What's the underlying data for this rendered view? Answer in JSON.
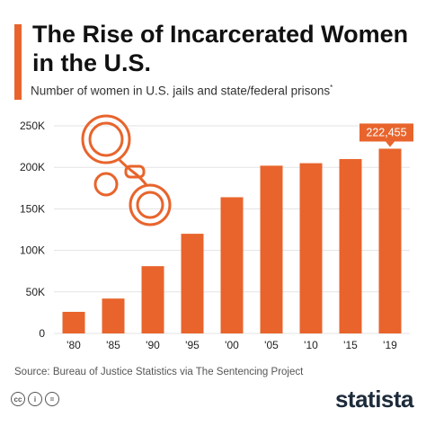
{
  "title": "The Rise of Incarcerated Women in the U.S.",
  "subtitle": "Number of women in U.S. jails and state/federal prisons",
  "subtitle_marker": "*",
  "source": "Source: Bureau of Justice Statistics via The Sentencing Project",
  "brand": "statista",
  "license_icons": [
    "cc-icon",
    "person-icon",
    "equals-icon"
  ],
  "colors": {
    "accent": "#e8642c",
    "bar": "#e8642c",
    "grid": "#e3e3e3",
    "text": "#222222"
  },
  "chart_data": {
    "type": "bar",
    "categories": [
      "'80",
      "'85",
      "'90",
      "'95",
      "'00",
      "'05",
      "'10",
      "'15",
      "'19"
    ],
    "values": [
      26000,
      42000,
      81000,
      120000,
      164000,
      202000,
      205000,
      210000,
      222455
    ],
    "y_ticks": [
      0,
      50000,
      100000,
      150000,
      200000,
      250000
    ],
    "y_tick_labels": [
      "0",
      "50K",
      "100K",
      "150K",
      "200K",
      "250K"
    ],
    "ylim": [
      0,
      250000
    ],
    "grid": true,
    "highlight": {
      "index": 8,
      "label": "222,455"
    },
    "decoration": "handcuffs-icon"
  }
}
